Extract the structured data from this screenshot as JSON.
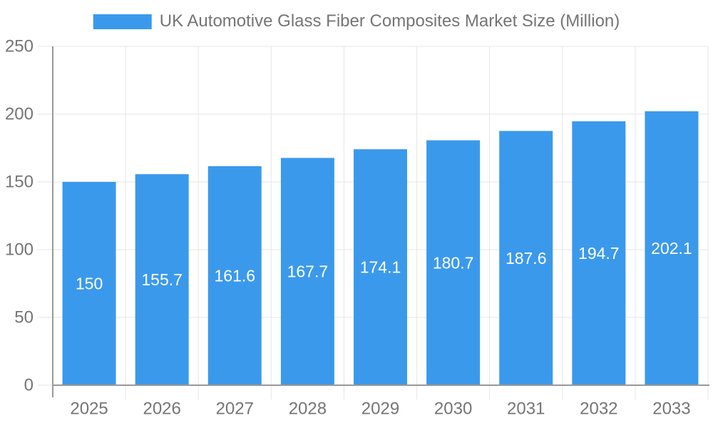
{
  "legend": {
    "label": "UK Automotive Glass Fiber Composites Market Size (Million)",
    "swatch_color": "#3b99ec"
  },
  "chart_data": {
    "type": "bar",
    "title": "UK Automotive Glass Fiber Composites Market Size (Million)",
    "categories": [
      "2025",
      "2026",
      "2027",
      "2028",
      "2029",
      "2030",
      "2031",
      "2032",
      "2033"
    ],
    "values": [
      150,
      155.7,
      161.6,
      167.7,
      174.1,
      180.7,
      187.6,
      194.7,
      202.1
    ],
    "xlabel": "",
    "ylabel": "",
    "ylim": [
      0,
      250
    ],
    "yticks": [
      0,
      50,
      100,
      150,
      200,
      250
    ],
    "grid": true,
    "legend_position": "top",
    "value_label_position": "inside-center",
    "bar_color": "#3b99ec",
    "value_label_color": "#ffffff",
    "axis_color": "#999999",
    "grid_color": "#e6e6e6",
    "tick_label_color": "#757575"
  }
}
